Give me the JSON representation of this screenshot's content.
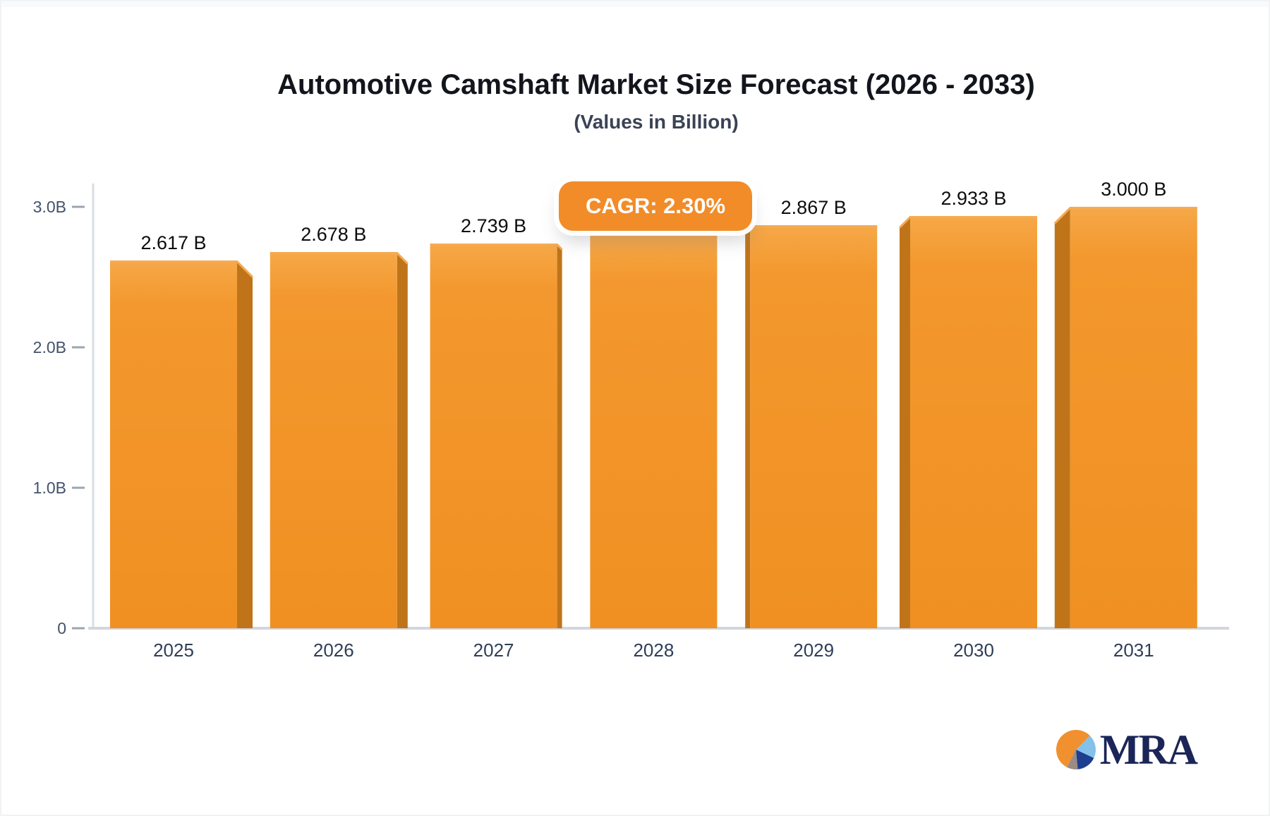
{
  "header": {
    "title": "Automotive Camshaft Market Size Forecast (2026 - 2033)",
    "subtitle": "(Values in Billion)"
  },
  "badge": {
    "label": "CAGR: 2.30%",
    "bg_color": "#f18c29",
    "text_color": "#ffffff"
  },
  "logo": {
    "text": "MRA",
    "pie_slice_colors": {
      "orange": "#f0902e",
      "light_blue": "#85c2ea",
      "navy": "#1e3e8f",
      "gray": "#9a8b85"
    }
  },
  "chart_data": {
    "type": "bar",
    "categories": [
      "2025",
      "2026",
      "2027",
      "2028",
      "2029",
      "2030",
      "2031"
    ],
    "values": [
      2.617,
      2.678,
      2.739,
      2.802,
      2.867,
      2.933,
      3.0
    ],
    "bar_labels": [
      "2.617 B",
      "2.678 B",
      "2.739 B",
      "",
      "2.867 B",
      "2.933 B",
      "3.000 B"
    ],
    "title": "Automotive Camshaft Market Size Forecast (2026 - 2033)",
    "subtitle": "(Values in Billion)",
    "xlabel": "",
    "ylabel": "",
    "ylim": [
      0,
      3.05
    ],
    "yticks": [
      {
        "value": 0,
        "label": "0"
      },
      {
        "value": 1,
        "label": "1.0B"
      },
      {
        "value": 2,
        "label": "2.0B"
      },
      {
        "value": 3,
        "label": "3.0B"
      }
    ],
    "grid": false,
    "legend": false,
    "annotations": [
      {
        "text": "CAGR: 2.30%",
        "x_category": "2028",
        "style": "orange-rounded-badge"
      }
    ],
    "colors": {
      "bar_face": "#f2952b",
      "bar_face_top": "#f6a848",
      "bar_side_3d": "#c0741a",
      "bar_top_highlight": "#f5ab53",
      "axis_line": "#dadde2",
      "baseline": "#d3d6db",
      "tick": "#9ba4af",
      "ytick_label": "#42526b",
      "xtick_label": "#2e3e59",
      "bar_value_label": "#0d0d0d"
    }
  }
}
